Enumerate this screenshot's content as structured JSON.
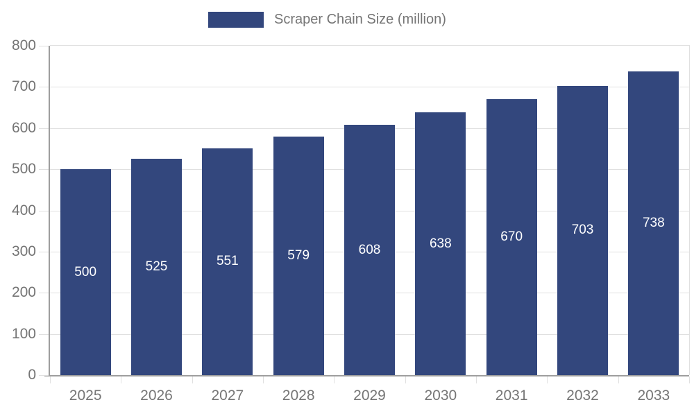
{
  "chart_data": {
    "type": "bar",
    "title": "Scraper Chain Size (million)",
    "legend": [
      {
        "label": "Scraper Chain Size (million)"
      }
    ],
    "legend_position": "top",
    "categories": [
      "2025",
      "2026",
      "2027",
      "2028",
      "2029",
      "2030",
      "2031",
      "2032",
      "2033"
    ],
    "series": [
      {
        "name": "Scraper Chain Size (million)",
        "values": [
          500,
          525,
          551,
          579,
          608,
          638,
          670,
          703,
          738
        ]
      }
    ],
    "data_labels": [
      "500",
      "525",
      "551",
      "579",
      "608",
      "638",
      "670",
      "703",
      "738"
    ],
    "xlabel": "",
    "ylabel": "",
    "ylim": [
      0,
      800
    ],
    "ytick_step": 100,
    "yticks": [
      "0",
      "100",
      "200",
      "300",
      "400",
      "500",
      "600",
      "700",
      "800"
    ],
    "grid": true
  },
  "colors": {
    "bar": "#33477d",
    "bar_value_text": "#ffffff",
    "axis_text": "#757575",
    "legend_text": "#757575",
    "gridline": "#e0e0e0",
    "axis_line": "#9e9e9e",
    "background": "#ffffff"
  }
}
